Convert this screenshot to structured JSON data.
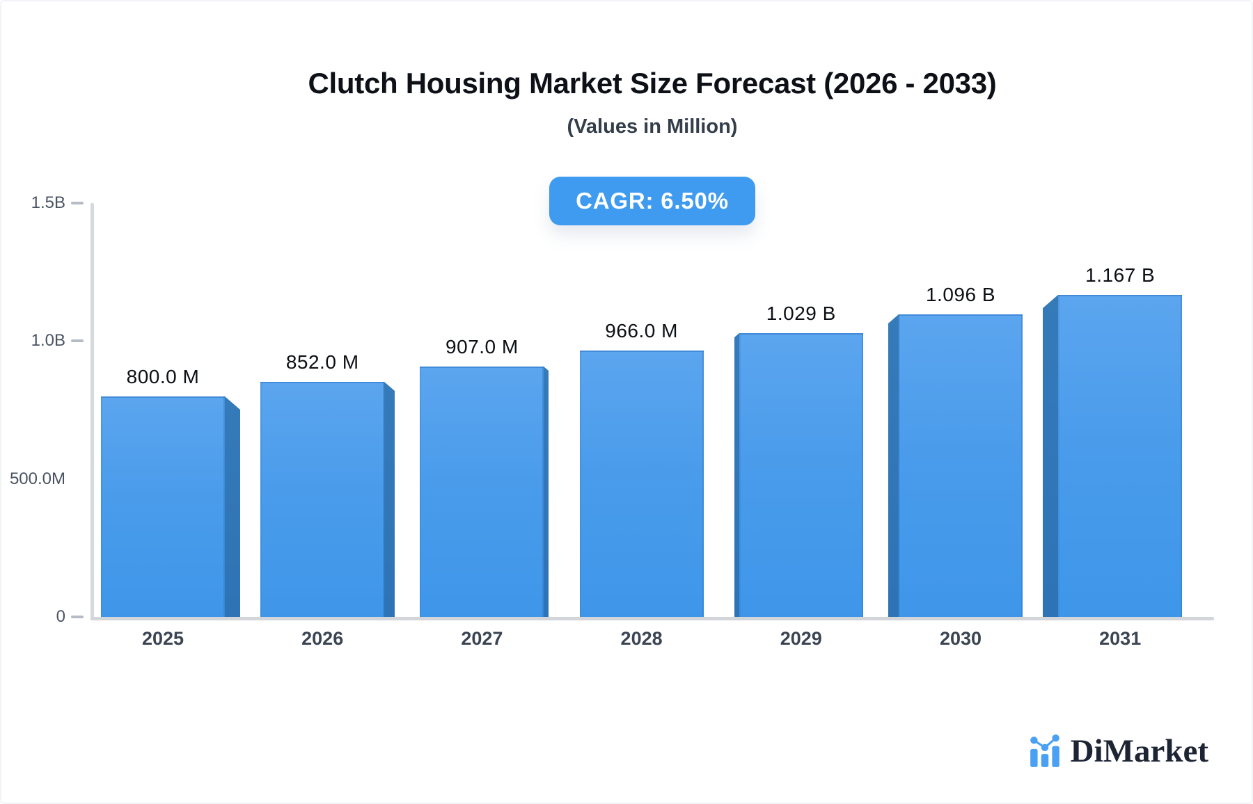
{
  "header": {
    "title": "Clutch Housing Market Size Forecast (2026 - 2033)",
    "subtitle": "(Values in Million)",
    "cagr_badge": "CAGR: 6.50%"
  },
  "chart_data": {
    "type": "bar",
    "title": "Clutch Housing Market Size Forecast (2026 - 2033)",
    "subtitle": "(Values in Million)",
    "cagr": "6.50%",
    "categories": [
      "2025",
      "2026",
      "2027",
      "2028",
      "2029",
      "2030",
      "2031"
    ],
    "values": [
      800,
      852,
      907,
      966,
      1029,
      1096,
      1167
    ],
    "value_labels": [
      "800.0 M",
      "852.0 M",
      "907.0 M",
      "966.0 M",
      "1.029 B",
      "1.096 B",
      "1.167 B"
    ],
    "values_unit": "Million",
    "ylim": [
      0,
      1500
    ],
    "yticks": [
      {
        "label": "1.5B",
        "value": 1500,
        "tick": true
      },
      {
        "label": "1.0B",
        "value": 1000,
        "tick": true
      },
      {
        "label": "500.0M",
        "value": 500,
        "tick": false
      },
      {
        "label": "0",
        "value": 0,
        "tick": true
      }
    ],
    "grid": false,
    "legend": false,
    "style": {
      "bar_face_top": "#5ca5ef",
      "bar_face_bottom": "#3f96e9",
      "bar_side": "#2e73b5",
      "axis_line": "#d5d8de",
      "tick_dash": "#b6bcc6",
      "badge_bg": "#3f9bf0",
      "effect": "3d-perspective-center-vanishing"
    }
  },
  "logo": {
    "text": "DiMarket",
    "icon": "dimarket-bar-chart-logo-icon",
    "icon_color": "#4aa0f2",
    "text_color": "#1d2433"
  }
}
